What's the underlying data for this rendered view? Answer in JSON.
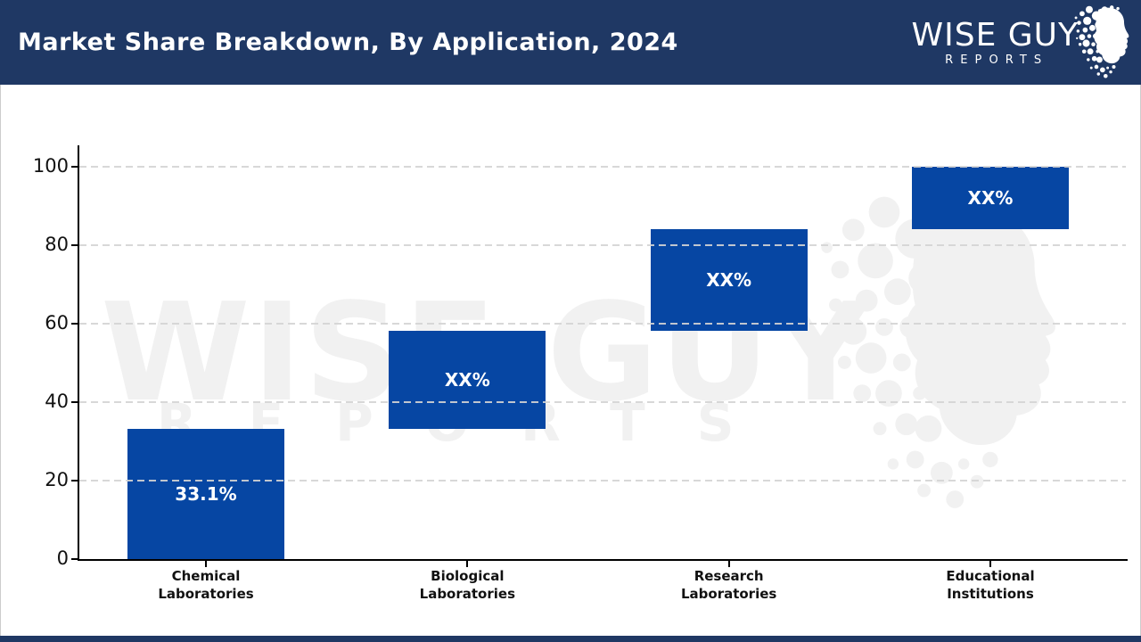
{
  "header": {
    "title": "Market Share Breakdown, By Application, 2024",
    "logo": {
      "brand_top": "WISE GUY",
      "brand_bottom": "REPORTS"
    }
  },
  "watermark": {
    "brand_top": "WISE GUY",
    "brand_bottom": "REPORTS"
  },
  "chart_data": {
    "type": "bar",
    "variant": "floating-segment-waterfall",
    "title": "Market Share Breakdown, By Application, 2024",
    "categories": [
      [
        "Chemical",
        "Laboratories"
      ],
      [
        "Biological",
        "Laboratories"
      ],
      [
        "Research",
        "Laboratories"
      ],
      [
        "Educational",
        "Institutions"
      ]
    ],
    "segments": [
      {
        "category": "Chemical Laboratories",
        "start": 0,
        "end": 33.1,
        "label": "33.1%"
      },
      {
        "category": "Biological Laboratories",
        "start": 33.1,
        "end": 58.1,
        "label": "XX%"
      },
      {
        "category": "Research Laboratories",
        "start": 58.1,
        "end": 84.1,
        "label": "XX%"
      },
      {
        "category": "Educational Institutions",
        "start": 84.1,
        "end": 100,
        "label": "XX%"
      }
    ],
    "ylim": [
      0,
      100
    ],
    "yticks": [
      0,
      20,
      40,
      60,
      80,
      100
    ],
    "xlabel": "",
    "ylabel": "",
    "legend": "none",
    "grid": {
      "axis": "y",
      "style": "dashed",
      "color": "#d9d9d9"
    },
    "colors": {
      "bar": "#0646a3",
      "bar_label": "#ffffff",
      "header_bg": "#1f3864",
      "axis": "#000000",
      "tick_label": "#111111",
      "watermark": "#f1f1f1"
    }
  }
}
